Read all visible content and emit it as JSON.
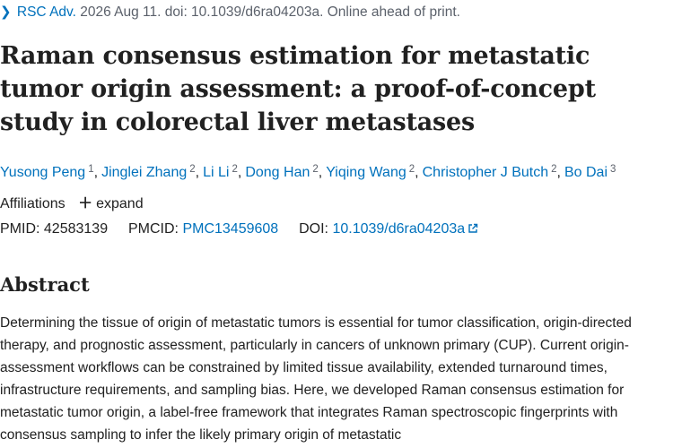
{
  "citation": {
    "journal": "RSC Adv.",
    "rest": " 2026 Aug 11. doi: 10.1039/d6ra04203a. Online ahead of print."
  },
  "title": "Raman consensus estimation for metastatic tumor origin assessment: a proof-of-concept study in colorectal liver metastases",
  "authors": [
    {
      "name": "Yusong Peng",
      "sup": "1"
    },
    {
      "name": "Jinglei Zhang",
      "sup": "2"
    },
    {
      "name": "Li Li",
      "sup": "2"
    },
    {
      "name": "Dong Han",
      "sup": "2"
    },
    {
      "name": "Yiqing Wang",
      "sup": "2"
    },
    {
      "name": "Christopher J Butch",
      "sup": "2"
    },
    {
      "name": "Bo Dai",
      "sup": "3"
    }
  ],
  "author_separator": ",",
  "affiliations": {
    "label": "Affiliations",
    "expand_label": "expand"
  },
  "identifiers": {
    "pmid_label": "PMID:",
    "pmid": "42583139",
    "pmcid_label": "PMCID:",
    "pmcid": "PMC13459608",
    "doi_label": "DOI:",
    "doi": "10.1039/d6ra04203a"
  },
  "abstract": {
    "heading": "Abstract",
    "text": "Determining the tissue of origin of metastatic tumors is essential for tumor classification, origin-directed therapy, and prognostic assessment, particularly in cancers of unknown primary (CUP). Current origin-assessment workflows can be constrained by limited tissue availability, extended turnaround times, infrastructure requirements, and sampling bias. Here, we developed Raman consensus estimation for metastatic tumor origin, a label-free framework that integrates Raman spectroscopic fingerprints with consensus sampling to infer the likely primary origin of metastatic"
  },
  "colors": {
    "link": "#0071bc",
    "text": "#212121",
    "muted": "#5b616b"
  },
  "icons": {
    "breadcrumb": "chevron-right-icon",
    "expand": "plus-icon",
    "external": "external-link-icon"
  }
}
